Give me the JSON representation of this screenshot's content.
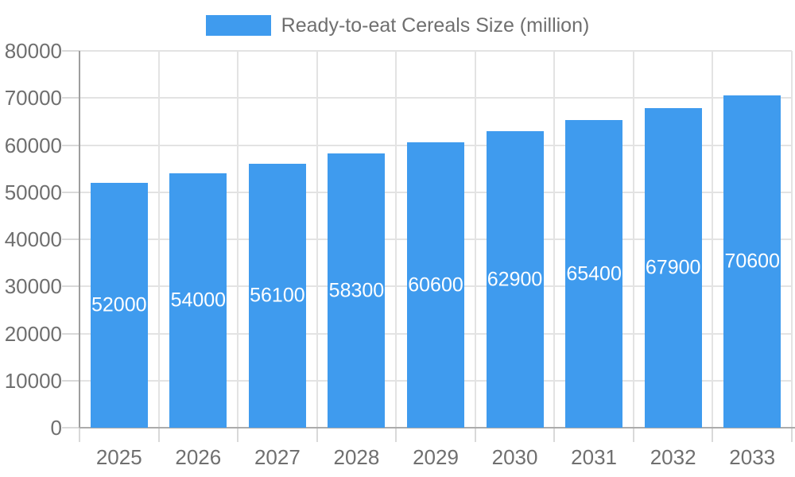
{
  "legend": {
    "label": "Ready-to-eat Cereals Size (million)"
  },
  "chart_data": {
    "type": "bar",
    "title": "",
    "categories": [
      "2025",
      "2026",
      "2027",
      "2028",
      "2029",
      "2030",
      "2031",
      "2032",
      "2033"
    ],
    "values": [
      52000,
      54000,
      56100,
      58300,
      60600,
      62900,
      65400,
      67900,
      70600
    ],
    "series_name": "Ready-to-eat Cereals Size (million)",
    "xlabel": "",
    "ylabel": "",
    "ylim": [
      0,
      80000
    ],
    "ytick_step": 10000,
    "ytick_labels": [
      "0",
      "10000",
      "20000",
      "30000",
      "40000",
      "50000",
      "60000",
      "70000",
      "80000"
    ],
    "grid": true,
    "legend_position": "top",
    "bar_label_position": "inside-center",
    "colors": {
      "bar": "#3F9BEE",
      "bar_label": "#FFFFFF",
      "axis_text": "#6F6F6F",
      "axis_line_y": "#9E9E9E",
      "axis_line_x": "#ABABAB",
      "gridline": "#E3E3E3",
      "tick": "#D9D9D9",
      "background": "#FFFFFF"
    }
  }
}
